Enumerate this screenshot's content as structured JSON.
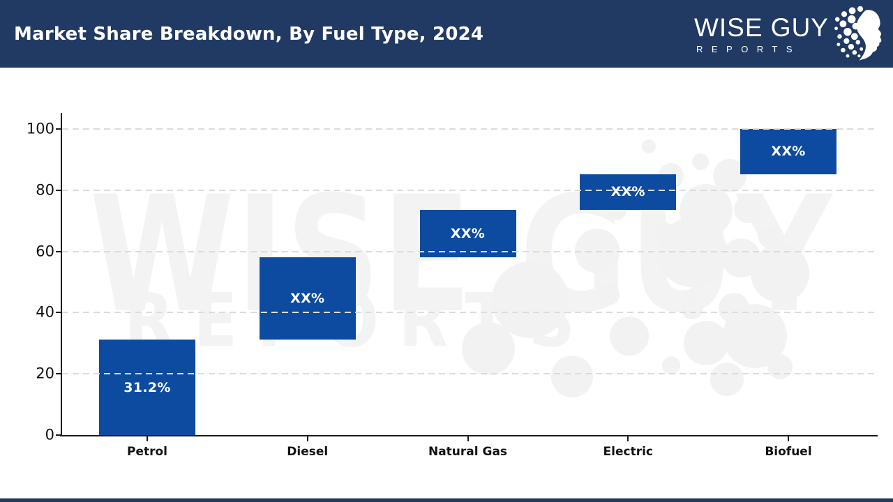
{
  "header": {
    "title": "Market Share Breakdown, By Fuel Type, 2024",
    "logo": {
      "line1": "WISE GUY",
      "line2": "REPORTS"
    }
  },
  "watermark": {
    "line1": "WISE GUY",
    "line2": "REPORTS"
  },
  "chart_data": {
    "type": "bar",
    "subtype": "waterfall",
    "title": "Market Share Breakdown, By Fuel Type, 2024",
    "categories": [
      "Petrol",
      "Diesel",
      "Natural Gas",
      "Electric",
      "Biofuel"
    ],
    "segments": [
      {
        "category": "Petrol",
        "start": 0,
        "end": 31.2,
        "label": "31.2%"
      },
      {
        "category": "Diesel",
        "start": 31.2,
        "end": 58.0,
        "label": "XX%"
      },
      {
        "category": "Natural Gas",
        "start": 58.0,
        "end": 73.6,
        "label": "XX%"
      },
      {
        "category": "Electric",
        "start": 73.6,
        "end": 85.2,
        "label": "XX%"
      },
      {
        "category": "Biofuel",
        "start": 85.2,
        "end": 100,
        "label": "XX%"
      }
    ],
    "xlabel": "",
    "ylabel": "",
    "ylim": [
      0,
      105
    ],
    "yticks": [
      0,
      20,
      40,
      60,
      80,
      100
    ],
    "grid": "horizontal-dashed",
    "legend": "none",
    "bar_color": "#0c4ba0",
    "bar_label_color": "#ffffff"
  },
  "colors": {
    "header_bg": "#213a63",
    "footer_bg": "#213a63",
    "bar": "#0c4ba0",
    "grid": "#dcdcdc",
    "axis": "#1a1a1a",
    "watermark": "#f3f3f3"
  }
}
